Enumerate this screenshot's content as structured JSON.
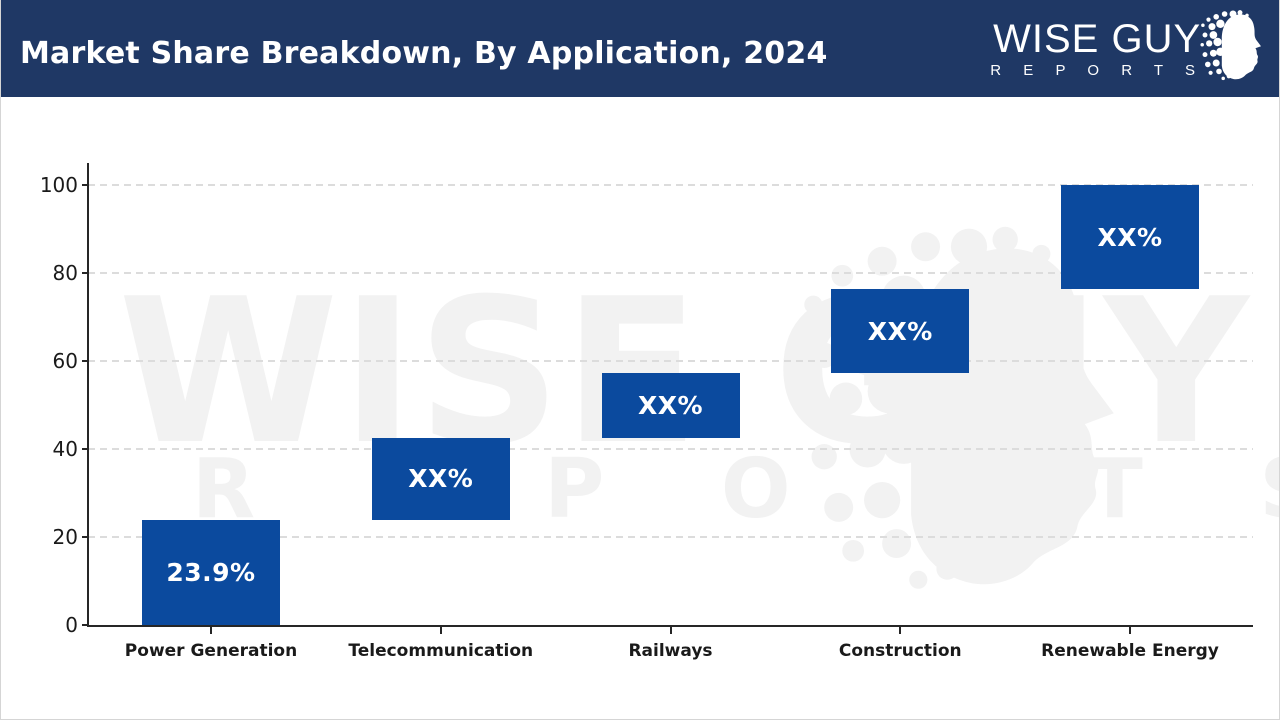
{
  "header": {
    "title": "Market Share Breakdown, By Application, 2024",
    "logo": {
      "name": "WISE GUY REPORTS",
      "line1": "WISE GUY",
      "line2": "R E P O R T S"
    }
  },
  "watermark": {
    "line1": "WISE GUY",
    "line2": "R E P O R T S"
  },
  "colors": {
    "header_bg": "#1f3865",
    "bar": "#0b4a9e",
    "axis": "#262626",
    "gridline": "#dcdcdc",
    "text": "#1a1a1a",
    "bar_label": "#ffffff",
    "watermark": "#f2f2f2",
    "page_border": "#d5d5d5"
  },
  "chart_data": {
    "type": "bar",
    "subtype": "waterfall",
    "title": "Market Share Breakdown, By Application, 2024",
    "categories": [
      "Power Generation",
      "Telecommunication",
      "Railways",
      "Construction",
      "Renewable Energy"
    ],
    "segments": [
      {
        "category": "Power Generation",
        "start": 0,
        "end": 23.9,
        "label": "23.9%"
      },
      {
        "category": "Telecommunication",
        "start": 23.9,
        "end": 42.5,
        "label": "XX%"
      },
      {
        "category": "Railways",
        "start": 42.5,
        "end": 57.3,
        "label": "XX%"
      },
      {
        "category": "Construction",
        "start": 57.3,
        "end": 76.3,
        "label": "XX%"
      },
      {
        "category": "Renewable Energy",
        "start": 76.3,
        "end": 100,
        "label": "XX%"
      }
    ],
    "yticks": [
      0,
      20,
      40,
      60,
      80,
      100
    ],
    "ylim": [
      0,
      105
    ],
    "xlabel": "",
    "ylabel": "",
    "grid": "horizontal-dashed",
    "legend": "none"
  }
}
